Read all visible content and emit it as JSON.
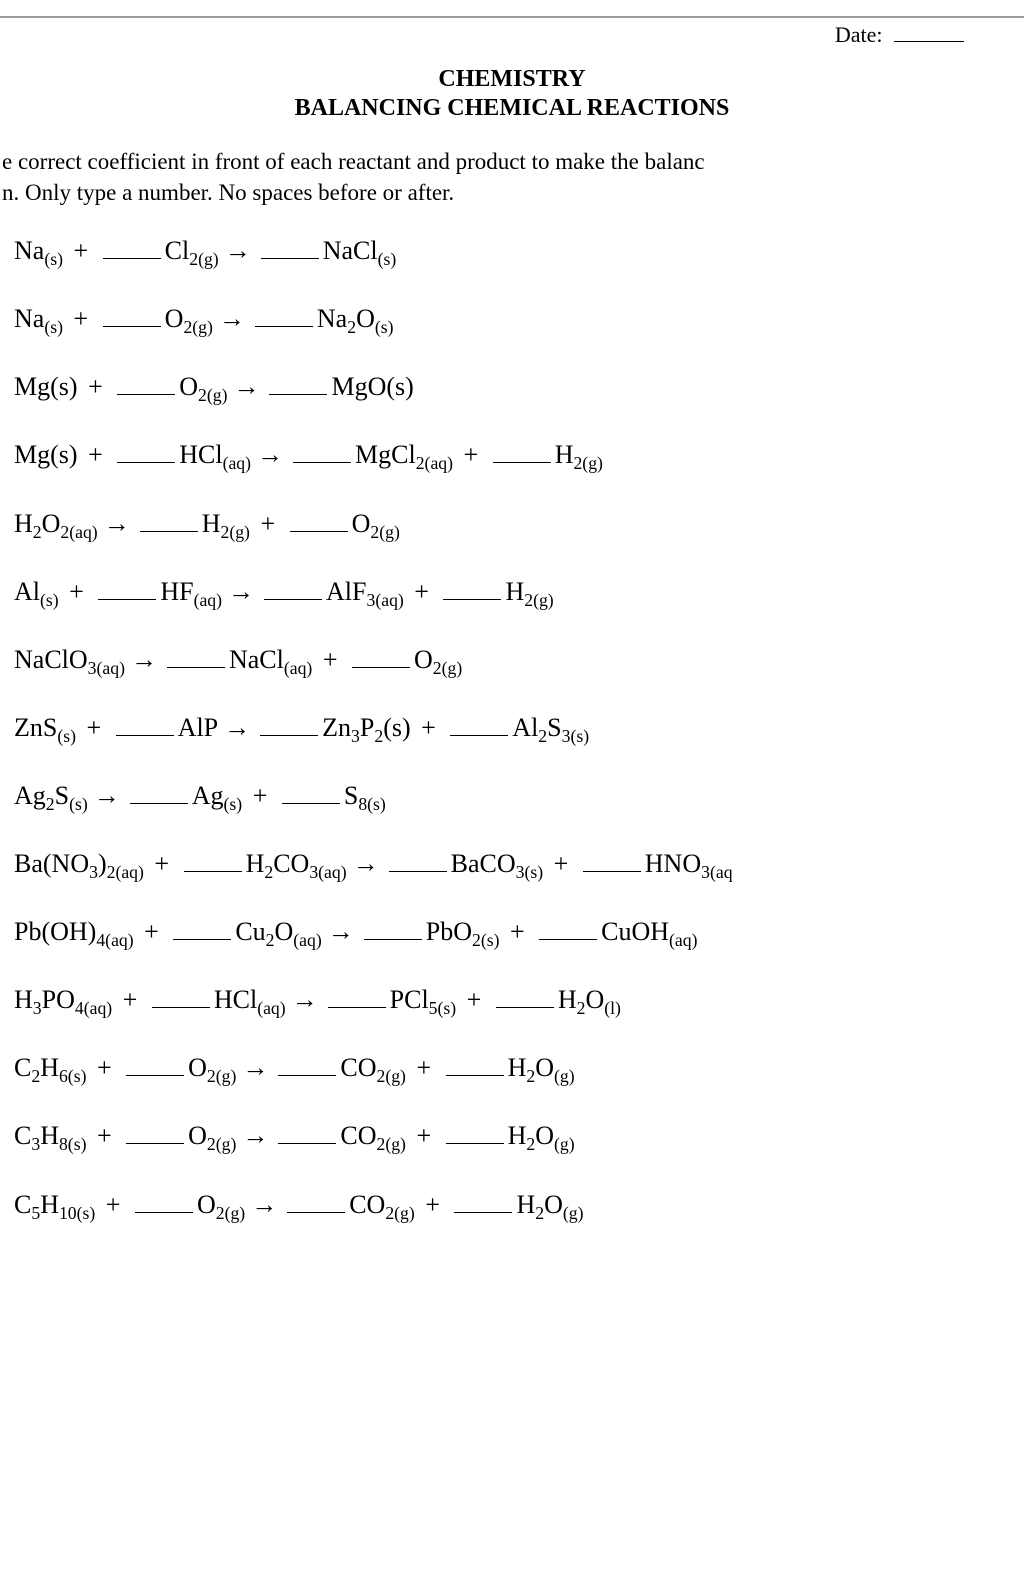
{
  "header": {
    "date_label": "Date:",
    "title1": "CHEMISTRY",
    "title2": "BALANCING CHEMICAL REACTIONS"
  },
  "instructions": {
    "line1": "e correct coefficient in front of each reactant and product to make the balanc",
    "line2": "n. Only type a number. No spaces before or after."
  },
  "symbols": {
    "arrow": "→",
    "plus": "+"
  },
  "equations": [
    {
      "parts": [
        {
          "t": "sp",
          "f": "Na",
          "s": "(s)"
        },
        {
          "t": "plus"
        },
        {
          "t": "blank"
        },
        {
          "t": "sp",
          "f": "Cl",
          "s": "2(g)"
        },
        {
          "t": "arrow"
        },
        {
          "t": "blank"
        },
        {
          "t": "sp",
          "f": "NaCl",
          "s": "(s)"
        }
      ]
    },
    {
      "parts": [
        {
          "t": "sp",
          "f": "Na",
          "s": "(s)"
        },
        {
          "t": "plus"
        },
        {
          "t": "blank"
        },
        {
          "t": "sp",
          "f": "O",
          "s": "2(g)"
        },
        {
          "t": "arrow"
        },
        {
          "t": "blank"
        },
        {
          "t": "seq",
          "seq": [
            {
              "f": "Na"
            },
            {
              "s": "2"
            },
            {
              "f": "O"
            },
            {
              "s": "(s)"
            }
          ]
        }
      ]
    },
    {
      "parts": [
        {
          "t": "txt",
          "f": "Mg(s)"
        },
        {
          "t": "plus"
        },
        {
          "t": "blank"
        },
        {
          "t": "sp",
          "f": "O",
          "s": "2(g)"
        },
        {
          "t": "arrow"
        },
        {
          "t": "blank"
        },
        {
          "t": "txt",
          "f": "MgO(s)"
        }
      ]
    },
    {
      "parts": [
        {
          "t": "txt",
          "f": "Mg(s)"
        },
        {
          "t": "plus"
        },
        {
          "t": "blank"
        },
        {
          "t": "sp",
          "f": "HCl",
          "s": "(aq)"
        },
        {
          "t": "arrow"
        },
        {
          "t": "blank"
        },
        {
          "t": "sp",
          "f": "MgCl",
          "s": "2(aq)"
        },
        {
          "t": "plus"
        },
        {
          "t": "blank"
        },
        {
          "t": "sp",
          "f": "H",
          "s": "2(g)"
        }
      ]
    },
    {
      "parts": [
        {
          "t": "seq",
          "seq": [
            {
              "f": "H"
            },
            {
              "s": "2"
            },
            {
              "f": "O"
            },
            {
              "s": "2(aq)"
            }
          ]
        },
        {
          "t": "arrow"
        },
        {
          "t": "blank"
        },
        {
          "t": "sp",
          "f": "H",
          "s": "2(g)"
        },
        {
          "t": "plus"
        },
        {
          "t": "blank"
        },
        {
          "t": "sp",
          "f": "O",
          "s": "2(g)"
        }
      ]
    },
    {
      "parts": [
        {
          "t": "sp",
          "f": "Al",
          "s": "(s)"
        },
        {
          "t": "plus"
        },
        {
          "t": "blank"
        },
        {
          "t": "sp",
          "f": "HF",
          "s": "(aq)"
        },
        {
          "t": "arrow"
        },
        {
          "t": "blank"
        },
        {
          "t": "sp",
          "f": "AlF",
          "s": "3(aq)"
        },
        {
          "t": "plus"
        },
        {
          "t": "blank"
        },
        {
          "t": "sp",
          "f": "H",
          "s": "2(g)"
        }
      ]
    },
    {
      "parts": [
        {
          "t": "sp",
          "f": "NaClO",
          "s": "3(aq)"
        },
        {
          "t": "arrow"
        },
        {
          "t": "blank"
        },
        {
          "t": "sp",
          "f": "NaCl",
          "s": "(aq)"
        },
        {
          "t": "plus"
        },
        {
          "t": "blank"
        },
        {
          "t": "sp",
          "f": "O",
          "s": "2(g)"
        }
      ]
    },
    {
      "parts": [
        {
          "t": "sp",
          "f": "ZnS",
          "s": "(s)"
        },
        {
          "t": "plus"
        },
        {
          "t": "blank"
        },
        {
          "t": "txt",
          "f": "AlP"
        },
        {
          "t": "arrow"
        },
        {
          "t": "blank"
        },
        {
          "t": "seq",
          "seq": [
            {
              "f": "Zn"
            },
            {
              "s": "3"
            },
            {
              "f": "P"
            },
            {
              "s": "2"
            },
            {
              "f": "(s)"
            }
          ]
        },
        {
          "t": "txt",
          "f": "  "
        },
        {
          "t": "plus"
        },
        {
          "t": "blank"
        },
        {
          "t": "seq",
          "seq": [
            {
              "f": "Al"
            },
            {
              "s": "2"
            },
            {
              "f": "S"
            },
            {
              "s": "3(s)"
            }
          ]
        }
      ]
    },
    {
      "parts": [
        {
          "t": "seq",
          "seq": [
            {
              "f": "Ag"
            },
            {
              "s": "2"
            },
            {
              "f": "S"
            },
            {
              "s": "(s)"
            }
          ]
        },
        {
          "t": "arrow"
        },
        {
          "t": "blank"
        },
        {
          "t": "sp",
          "f": "Ag",
          "s": "(s)"
        },
        {
          "t": "plus"
        },
        {
          "t": "blank"
        },
        {
          "t": "sp",
          "f": "S",
          "s": "8(s)"
        }
      ]
    },
    {
      "parts": [
        {
          "t": "seq",
          "seq": [
            {
              "f": "Ba(NO"
            },
            {
              "s": "3"
            },
            {
              "f": ")"
            },
            {
              "s": "2(aq)"
            }
          ]
        },
        {
          "t": "plus"
        },
        {
          "t": "blank"
        },
        {
          "t": "seq",
          "seq": [
            {
              "f": "H"
            },
            {
              "s": "2"
            },
            {
              "f": "CO"
            },
            {
              "s": "3(aq)"
            }
          ]
        },
        {
          "t": "arrow"
        },
        {
          "t": "blank"
        },
        {
          "t": "sp",
          "f": "BaCO",
          "s": "3(s)"
        },
        {
          "t": "plus"
        },
        {
          "t": "blank"
        },
        {
          "t": "sp",
          "f": "HNO",
          "s": "3(aq"
        }
      ]
    },
    {
      "parts": [
        {
          "t": "sp",
          "f": "Pb(OH)",
          "s": "4(aq)"
        },
        {
          "t": "plus"
        },
        {
          "t": "blank"
        },
        {
          "t": "seq",
          "seq": [
            {
              "f": "Cu"
            },
            {
              "s": "2"
            },
            {
              "f": "O"
            },
            {
              "s": "(aq)"
            }
          ]
        },
        {
          "t": "arrow"
        },
        {
          "t": "blank"
        },
        {
          "t": "sp",
          "f": "PbO",
          "s": "2(s)"
        },
        {
          "t": "plus"
        },
        {
          "t": "blank"
        },
        {
          "t": "sp",
          "f": "CuOH",
          "s": "(aq)"
        }
      ]
    },
    {
      "parts": [
        {
          "t": "seq",
          "seq": [
            {
              "f": "H"
            },
            {
              "s": "3"
            },
            {
              "f": "PO"
            },
            {
              "s": "4(aq)"
            }
          ]
        },
        {
          "t": "plus"
        },
        {
          "t": "blank"
        },
        {
          "t": "sp",
          "f": "HCl",
          "s": "(aq)"
        },
        {
          "t": "arrow"
        },
        {
          "t": "blank"
        },
        {
          "t": "sp",
          "f": "PCl",
          "s": "5(s)"
        },
        {
          "t": "plus"
        },
        {
          "t": "blank"
        },
        {
          "t": "seq",
          "seq": [
            {
              "f": "H"
            },
            {
              "s": "2"
            },
            {
              "f": "O"
            },
            {
              "s": "(l)"
            }
          ]
        }
      ]
    },
    {
      "parts": [
        {
          "t": "seq",
          "seq": [
            {
              "f": "C"
            },
            {
              "s": "2"
            },
            {
              "f": "H"
            },
            {
              "s": "6(s)"
            }
          ]
        },
        {
          "t": "plus"
        },
        {
          "t": "blank"
        },
        {
          "t": "sp",
          "f": "O",
          "s": "2(g)"
        },
        {
          "t": "arrow"
        },
        {
          "t": "blank"
        },
        {
          "t": "sp",
          "f": "CO",
          "s": "2(g)"
        },
        {
          "t": "plus"
        },
        {
          "t": "blank"
        },
        {
          "t": "seq",
          "seq": [
            {
              "f": "H"
            },
            {
              "s": "2"
            },
            {
              "f": "O"
            },
            {
              "s": "(g)"
            }
          ]
        }
      ]
    },
    {
      "parts": [
        {
          "t": "seq",
          "seq": [
            {
              "f": "C"
            },
            {
              "s": "3"
            },
            {
              "f": "H"
            },
            {
              "s": "8(s)"
            }
          ]
        },
        {
          "t": "plus"
        },
        {
          "t": "blank"
        },
        {
          "t": "sp",
          "f": "O",
          "s": "2(g)"
        },
        {
          "t": "arrow"
        },
        {
          "t": "blank"
        },
        {
          "t": "sp",
          "f": "CO",
          "s": "2(g)"
        },
        {
          "t": "plus"
        },
        {
          "t": "blank"
        },
        {
          "t": "seq",
          "seq": [
            {
              "f": "H"
            },
            {
              "s": "2"
            },
            {
              "f": "O"
            },
            {
              "s": "(g)"
            }
          ]
        }
      ]
    },
    {
      "parts": [
        {
          "t": "seq",
          "seq": [
            {
              "f": "C"
            },
            {
              "s": "5"
            },
            {
              "f": "H"
            },
            {
              "s": "10(s)"
            }
          ]
        },
        {
          "t": "plus"
        },
        {
          "t": "blank"
        },
        {
          "t": "sp",
          "f": "O",
          "s": "2(g)"
        },
        {
          "t": "arrow"
        },
        {
          "t": "blank"
        },
        {
          "t": "sp",
          "f": "CO",
          "s": "2(g)"
        },
        {
          "t": "plus"
        },
        {
          "t": "blank"
        },
        {
          "t": "seq",
          "seq": [
            {
              "f": "H"
            },
            {
              "s": "2"
            },
            {
              "f": "O"
            },
            {
              "s": "(g)"
            }
          ]
        }
      ]
    }
  ]
}
